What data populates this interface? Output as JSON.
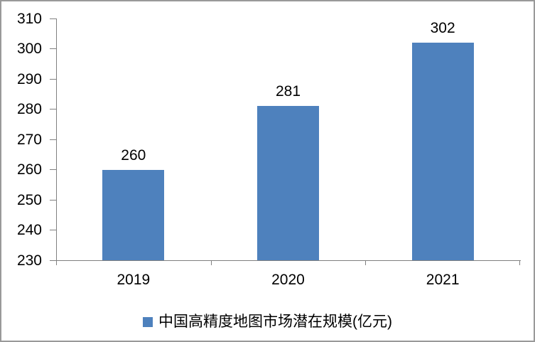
{
  "chart_data": {
    "type": "bar",
    "title": "",
    "xlabel": "",
    "ylabel": "",
    "categories": [
      "2019",
      "2020",
      "2021"
    ],
    "values": [
      260,
      281,
      302
    ],
    "data_labels": [
      "260",
      "281",
      "302"
    ],
    "ylim": [
      230,
      310
    ],
    "ytick_step": 10,
    "ytick_labels": [
      "230",
      "240",
      "250",
      "260",
      "270",
      "280",
      "290",
      "300",
      "310"
    ],
    "grid": false,
    "legend": {
      "position": "bottom",
      "label": "中国高精度地图市场潜在规模(亿元)",
      "marker_color": "#4E81BD"
    },
    "colors": {
      "bar": "#4E81BD",
      "axis": "#808080",
      "text": "#000000",
      "background": "#FFFFFF",
      "border": "#999999"
    }
  }
}
